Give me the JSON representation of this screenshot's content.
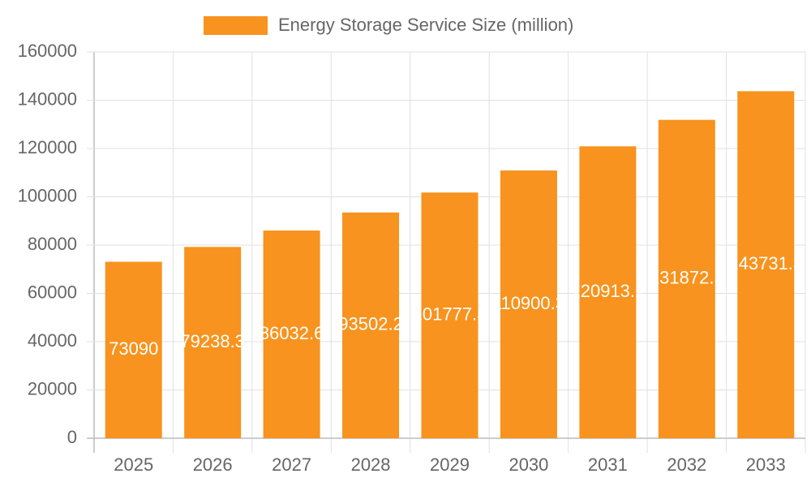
{
  "chart_data": {
    "type": "bar",
    "categories": [
      "2025",
      "2026",
      "2027",
      "2028",
      "2029",
      "2030",
      "2031",
      "2032",
      "2033"
    ],
    "series": [
      {
        "name": "Energy Storage Service Size (million)",
        "color": "#f7931e",
        "values": [
          73090,
          79238.3,
          86032.6,
          93502.2,
          101777.3,
          110900.3,
          120913.1,
          131872.5,
          143731.3
        ]
      }
    ],
    "ylim": [
      0,
      160000
    ],
    "yticks": [
      0,
      20000,
      40000,
      60000,
      80000,
      100000,
      120000,
      140000,
      160000
    ],
    "grid": true,
    "legend": "top"
  }
}
